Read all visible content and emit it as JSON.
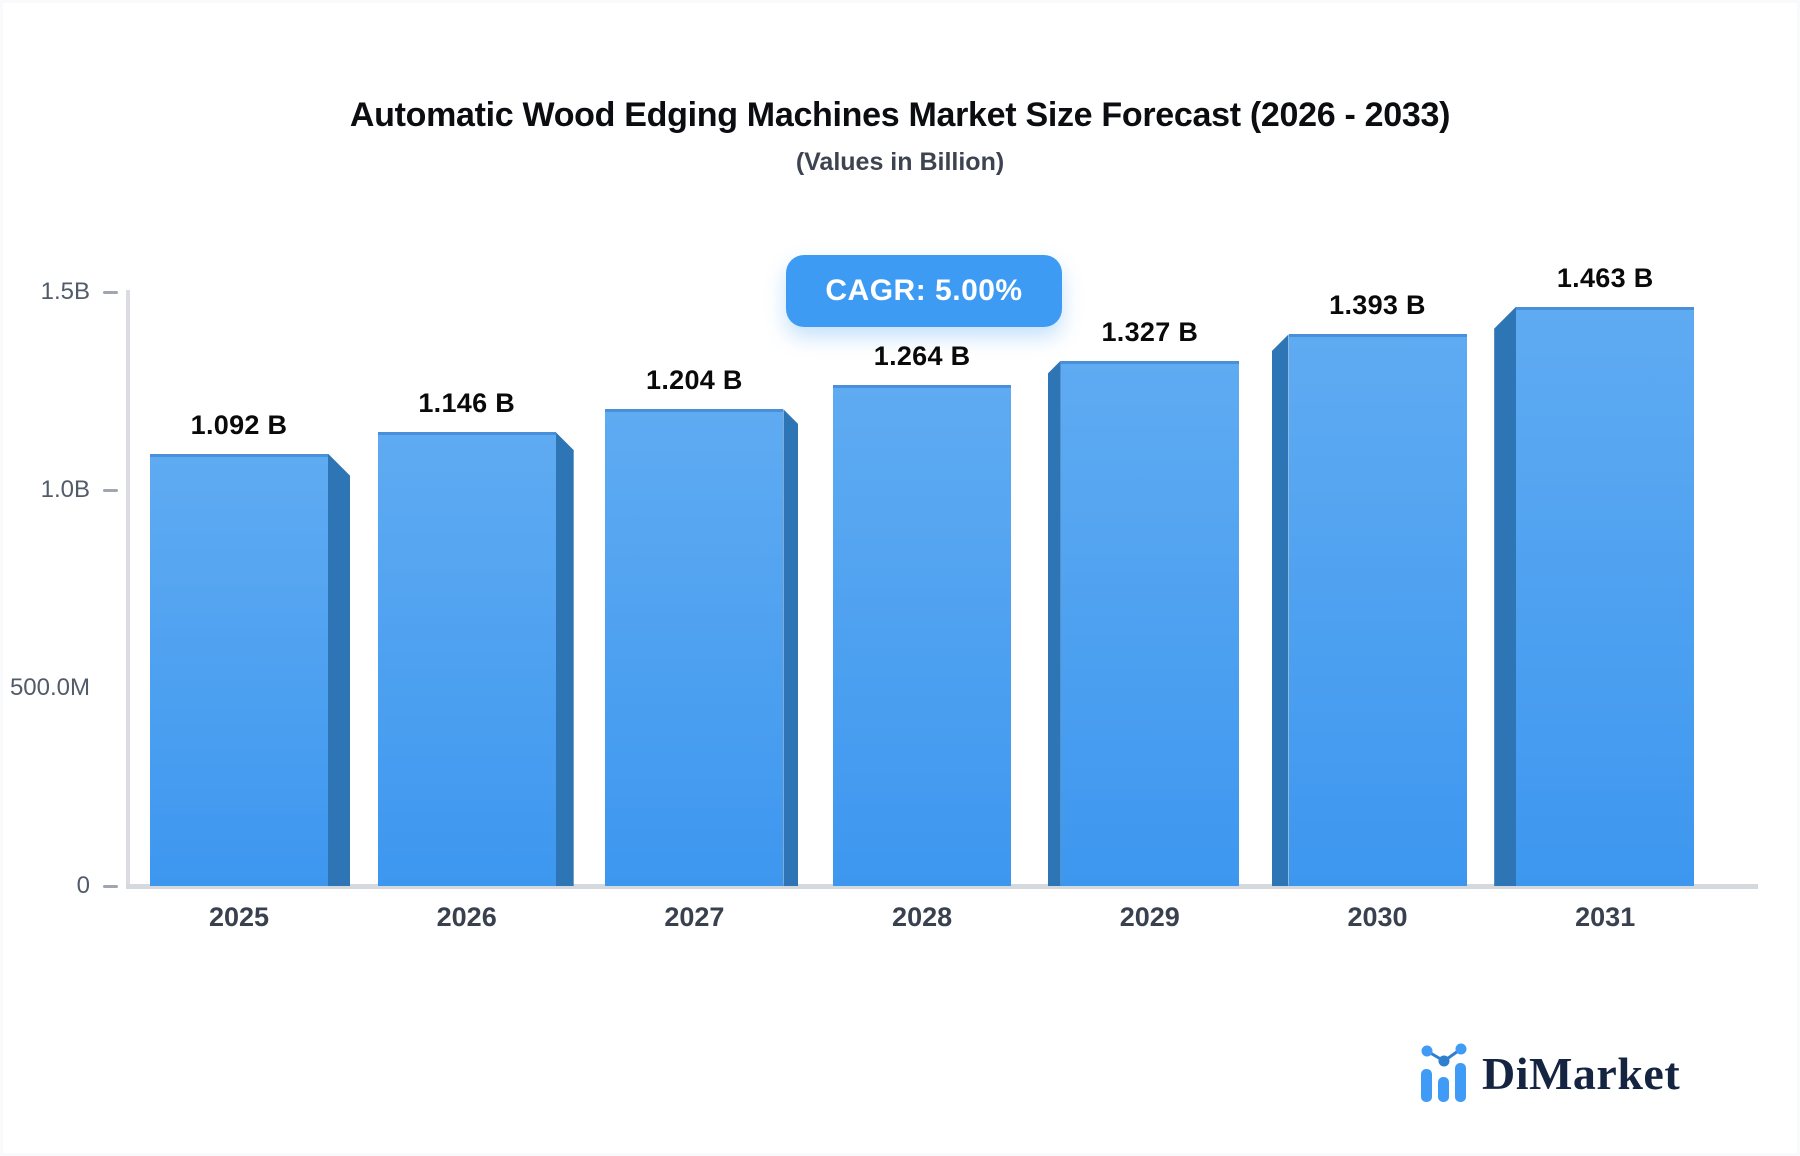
{
  "header": {
    "title": "Automatic Wood Edging Machines Market Size Forecast (2026 - 2033)",
    "subtitle": "(Values in Billion)"
  },
  "cagr_badge": {
    "label": "CAGR: 5.00%",
    "bg_color": "#3D9BF3",
    "text_color": "#FFFFFF"
  },
  "chart_data": {
    "type": "bar",
    "title": "Automatic Wood Edging Machines Market Size Forecast (2026 - 2033)",
    "subtitle": "(Values in Billion)",
    "unit": "Billion",
    "cagr_percent": "5.00%",
    "categories": [
      "2025",
      "2026",
      "2027",
      "2028",
      "2029",
      "2030",
      "2031"
    ],
    "values": [
      1.092,
      1.146,
      1.204,
      1.264,
      1.327,
      1.393,
      1.463
    ],
    "value_labels": [
      "1.092 B",
      "1.146 B",
      "1.204 B",
      "1.264 B",
      "1.327 B",
      "1.393 B",
      "1.463 B"
    ],
    "ylim": [
      0,
      1.5
    ],
    "y_axis": [
      {
        "label": "1.5B",
        "value": 1.5,
        "tick": true
      },
      {
        "label": "1.0B",
        "value": 1.0,
        "tick": true
      },
      {
        "label": "500.0M",
        "value": 0.5,
        "tick": false
      },
      {
        "label": "0",
        "value": 0.0,
        "tick": true
      }
    ],
    "grid": false,
    "legend": "none",
    "bar_color_top": "#5FABF2",
    "bar_color_bottom": "#3D97EF",
    "bar_side_color": "#2E75B6"
  },
  "logo": {
    "name": "DiMarket",
    "icon": "bar-line-chart-icon",
    "text_color": "#152440",
    "icon_color": "#3F9BF5"
  }
}
